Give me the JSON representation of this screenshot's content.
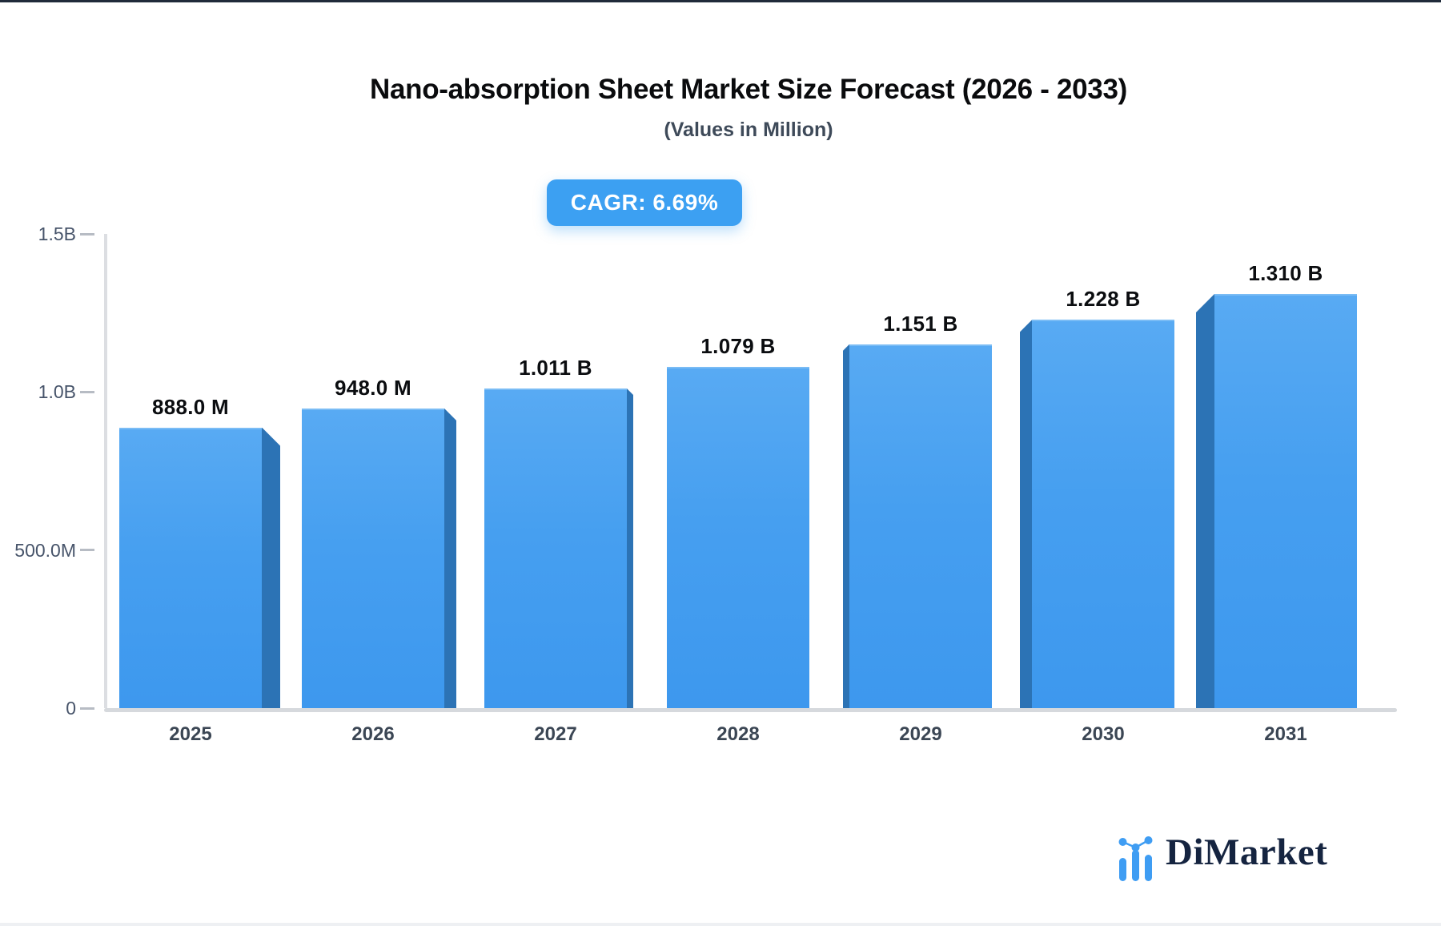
{
  "header": {
    "title": "Nano-absorption Sheet Market Size Forecast (2026 - 2033)",
    "subtitle": "(Values in Million)"
  },
  "cagr_badge": {
    "label": "CAGR: 6.69%",
    "background": "#3ca0f2",
    "text_color": "#ffffff"
  },
  "chart_data": {
    "type": "bar",
    "title": "Nano-absorption Sheet Market Size Forecast (2026 - 2033)",
    "subtitle": "(Values in Million)",
    "categories": [
      "2025",
      "2026",
      "2027",
      "2028",
      "2029",
      "2030",
      "2031"
    ],
    "values": [
      888,
      948,
      1011,
      1079,
      1151,
      1228,
      1310
    ],
    "value_labels": [
      "888.0 M",
      "948.0 M",
      "1.011 B",
      "1.079 B",
      "1.151 B",
      "1.228 B",
      "1.310 B"
    ],
    "y_ticks": [
      {
        "label": "1.5B",
        "value": 1500
      },
      {
        "label": "1.0B",
        "value": 1000
      },
      {
        "label": "500.0M",
        "value": 500
      },
      {
        "label": "0",
        "value": 0
      }
    ],
    "ylim": [
      0,
      1500
    ],
    "grid": false,
    "legend": "none",
    "style": "3d-perspective-bars",
    "bar_face_color": "#469ff0",
    "bar_side_color": "#2c73b5",
    "axis_color": "#dcdee2",
    "label_color": "#3b4654"
  },
  "logo": {
    "text": "DiMarket",
    "icon": "bar-line-chart-icon",
    "text_color": "#152440",
    "accent_color": "#3f9df3"
  }
}
